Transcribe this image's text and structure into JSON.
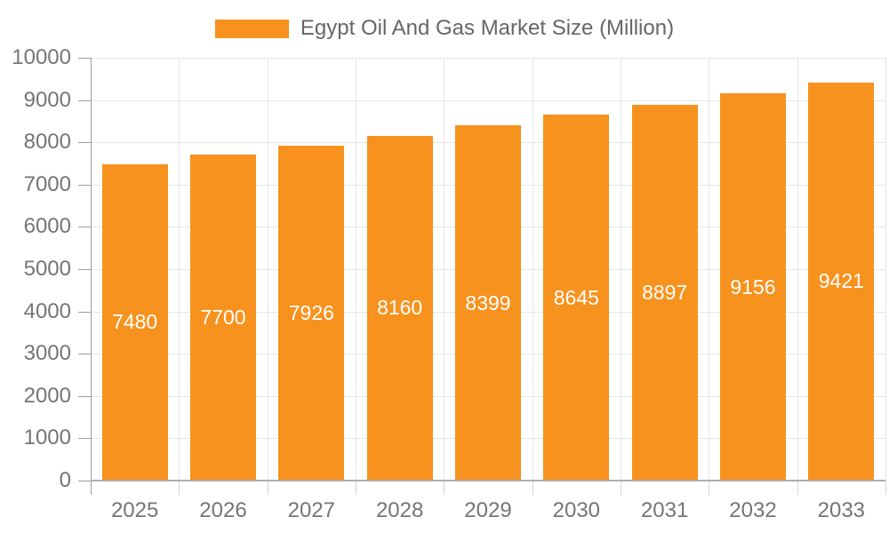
{
  "page": {
    "background": "#FFFFFF"
  },
  "legend": {
    "label": "Egypt Oil And Gas Market Size (Million)",
    "swatch_color": "#F7921E"
  },
  "chart_data": {
    "type": "bar",
    "title": "Egypt Oil And Gas Market Size (Million)",
    "categories": [
      "2025",
      "2026",
      "2027",
      "2028",
      "2029",
      "2030",
      "2031",
      "2032",
      "2033"
    ],
    "values": [
      7480,
      7700,
      7926,
      8160,
      8399,
      8645,
      8897,
      9156,
      9421
    ],
    "series_name": "Egypt Oil And Gas Market Size (Million)",
    "xlabel": "",
    "ylabel": "",
    "ylim": [
      0,
      10000
    ],
    "ytick_step": 1000,
    "y_tick_labels": [
      "0",
      "1000",
      "2000",
      "3000",
      "4000",
      "5000",
      "6000",
      "7000",
      "8000",
      "9000",
      "10000"
    ],
    "grid": true,
    "legend_position": "top-center",
    "bar_color": "#F7921E",
    "bar_value_label_color": "#FFFFFF",
    "axis_text_color": "#757575",
    "legend_text_color": "#666666",
    "gridline_color": "#E6E6E6",
    "axis_line_color": "#9E9E9E"
  }
}
